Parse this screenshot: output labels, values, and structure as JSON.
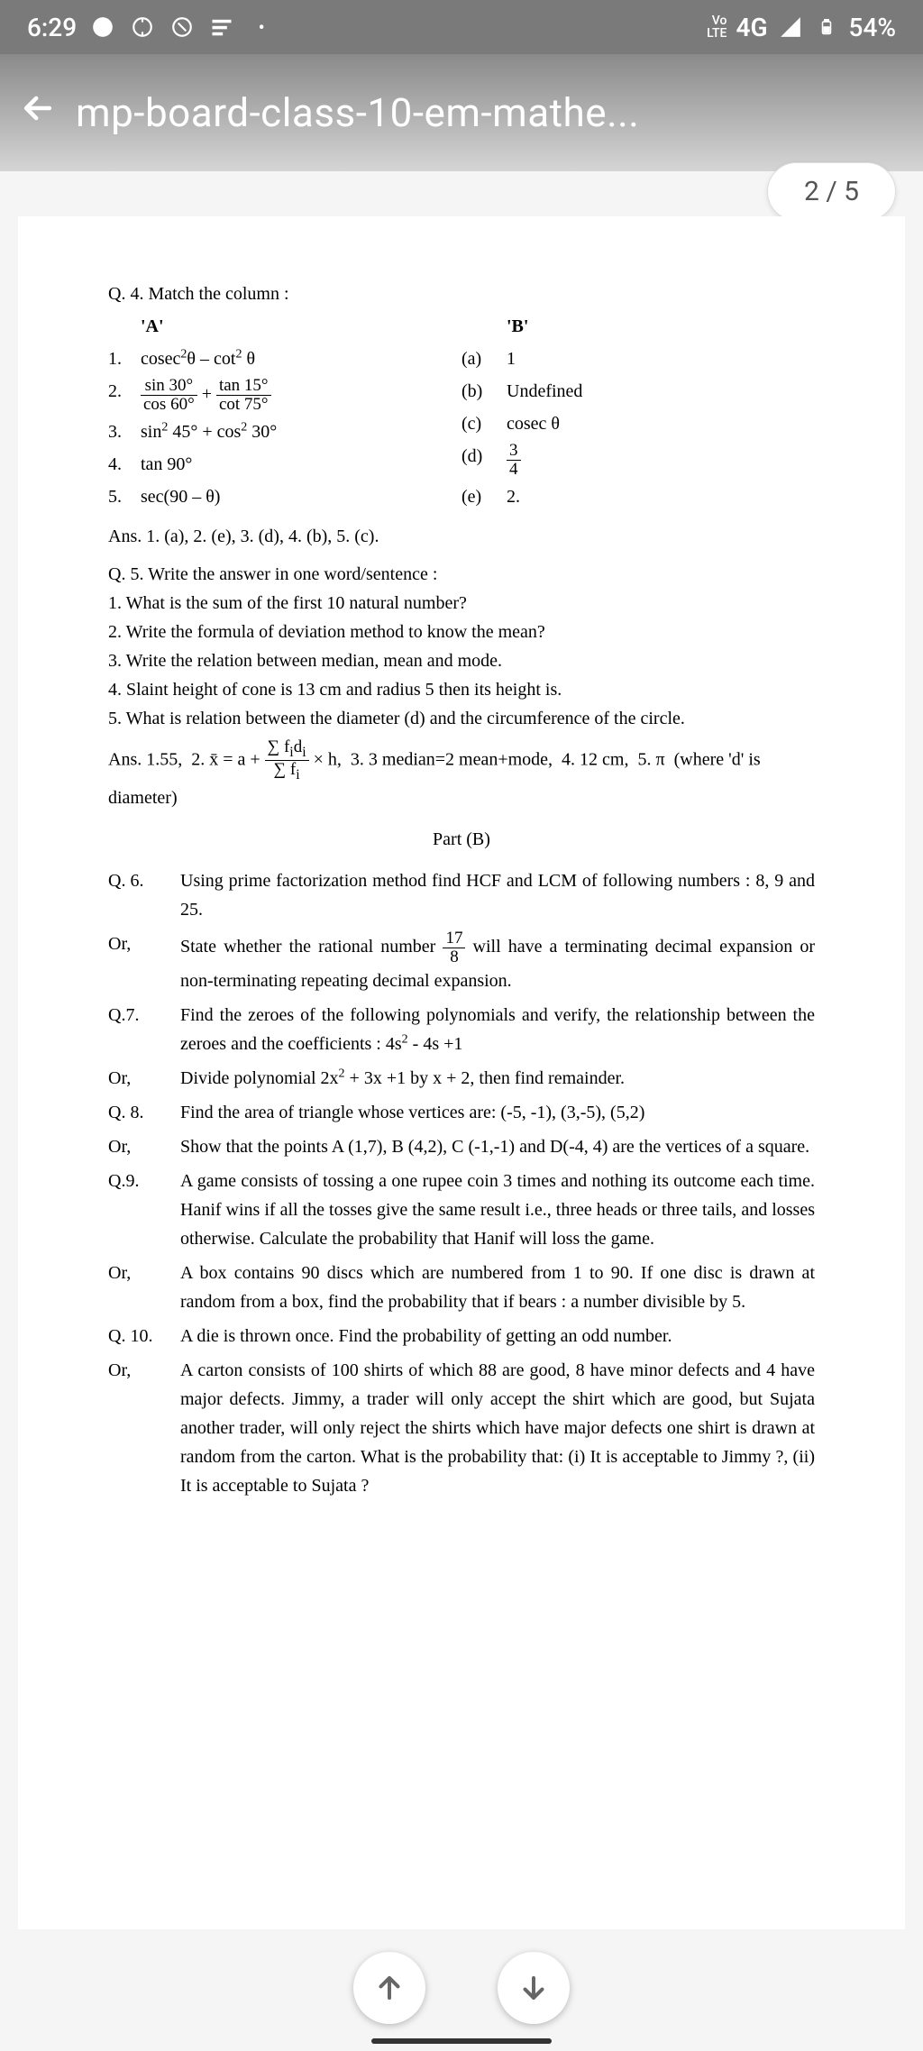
{
  "status": {
    "time": "6:29",
    "network": "4G",
    "network_prefix": "Vo LTE",
    "battery": "54%"
  },
  "header": {
    "title": "mp-board-class-10-em-mathe..."
  },
  "page_indicator": "2 / 5",
  "q4": {
    "title": "Q. 4. Match the column :",
    "headA": "'A'",
    "headB": "'B'",
    "rowsA": [
      {
        "n": "1.",
        "html": "cosec<sup>2</sup>θ – cot<sup>2</sup> θ"
      },
      {
        "n": "2.",
        "html": "<span class='frac'><span class='top'>sin 30°</span><span class='bot'>cos 60°</span></span> + <span class='frac'><span class='top'>tan 15°</span><span class='bot'>cot 75°</span></span>"
      },
      {
        "n": "3.",
        "html": "sin<sup>2</sup> 45° + cos<sup>2</sup> 30°"
      },
      {
        "n": "4.",
        "html": "tan 90°"
      },
      {
        "n": "5.",
        "html": "sec(90 – θ)"
      }
    ],
    "rowsB": [
      {
        "n": "(a)",
        "html": "1"
      },
      {
        "n": "(b)",
        "html": "Undefined"
      },
      {
        "n": "(c)",
        "html": "cosec θ"
      },
      {
        "n": "(d)",
        "html": "<span class='frac'><span class='top'>3</span><span class='bot'>4</span></span>"
      },
      {
        "n": "(e)",
        "html": "2."
      }
    ],
    "ans": "Ans. 1. (a), 2. (e), 3. (d), 4. (b), 5. (c)."
  },
  "q5": {
    "title": "Q. 5. Write the answer in one word/sentence :",
    "items": [
      "1. What is the sum of the first 10 natural number?",
      "2. Write the formula of deviation method to know the mean?",
      "3. Write the relation between median, mean and mode.",
      "4. Slaint height of cone is 13 cm and radius 5 then its height is.",
      "5. What is relation between the diameter (d) and the circumference of the circle."
    ],
    "ans_html": "Ans. 1.55,&nbsp; 2. x̄ = a + <span class='frac'><span class='top'>∑ f<sub>i</sub>d<sub>i</sub></span><span class='bot'>∑ f<sub>i</sub></span></span> × h,&nbsp; 3. 3 median=2 mean+mode,&nbsp; 4. 12 cm,&nbsp; 5. π &nbsp;(where 'd' is diameter)"
  },
  "partB": {
    "label": "Part (B)",
    "items": [
      {
        "label": "Q. 6.",
        "html": "Using prime factorization method find HCF and LCM of following numbers : 8, 9 and 25."
      },
      {
        "label": "Or,",
        "html": "State whether the rational number <span class='frac'><span class='top'>17</span><span class='bot'>8</span></span> will have a terminating decimal expansion or non-terminating repeating decimal expansion."
      },
      {
        "label": "Q.7.",
        "html": "Find the zeroes of the following polynomials and verify, the relationship between the zeroes and the coefficients : 4s<sup>2</sup> - 4s +1"
      },
      {
        "label": "Or,",
        "html": "Divide polynomial 2x<sup>2</sup> + 3x +1 by x + 2, then find remainder."
      },
      {
        "label": "Q. 8.",
        "html": "Find the area of triangle whose vertices are: (-5, -1), (3,-5), (5,2)"
      },
      {
        "label": "Or,",
        "html": "Show that the points A (1,7), B (4,2), C (-1,-1) and D(-4, 4) are the vertices of a square."
      },
      {
        "label": "Q.9.",
        "html": "A game consists of tossing a one rupee coin 3 times and nothing its outcome each time. Hanif wins if all the tosses give the same result i.e., three heads or three tails, and losses otherwise. Calculate the probability that Hanif will loss the game."
      },
      {
        "label": "Or,",
        "html": "A box contains 90 discs which are numbered from 1 to 90. If one disc is drawn at random from a box, find the probability that if bears : a number divisible by 5."
      },
      {
        "label": "Q. 10.",
        "html": "A die is thrown once. Find the probability of getting an odd number."
      },
      {
        "label": "Or,",
        "html": "A carton consists of 100 shirts of which 88 are good, 8 have minor defects and 4 have major defects. Jimmy, a trader will only accept the shirt which are good, but Sujata another trader, will only reject the shirts which have major defects one shirt is drawn at random from the carton. What is the probability that: (i) It is acceptable to Jimmy ?, (ii) It is acceptable to Sujata ?"
      }
    ]
  },
  "nav": {
    "up": "↑",
    "down": "↓"
  }
}
